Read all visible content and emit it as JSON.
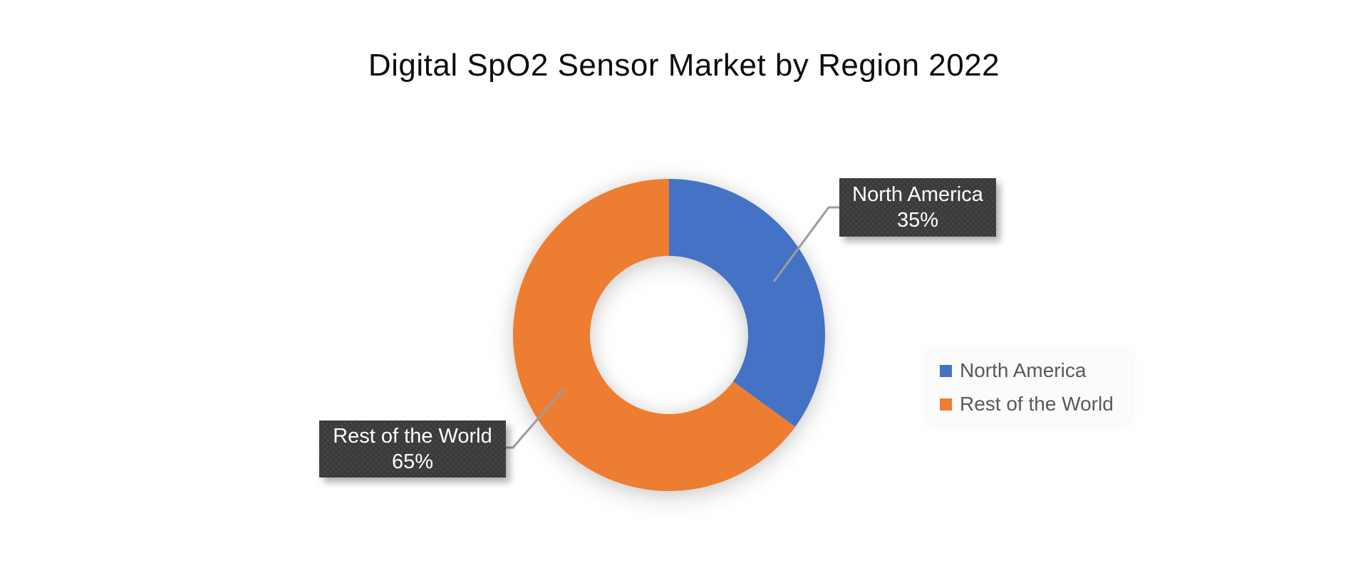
{
  "title": "Digital SpO2 Sensor Market by Region 2022",
  "chart_data": {
    "type": "pie",
    "subtype": "donut",
    "title": "Digital SpO2 Sensor Market by Region 2022",
    "categories": [
      "North America",
      "Rest of the World"
    ],
    "values": [
      35,
      65
    ],
    "unit": "percent",
    "colors": [
      "#4472C4",
      "#ED7D31"
    ],
    "hole_ratio": 0.51,
    "start_angle_deg": 0,
    "direction": "clockwise",
    "legend_position": "right",
    "data_labels": [
      "North America 35%",
      "Rest of the World 65%"
    ]
  },
  "callouts": [
    {
      "label": "North America",
      "value": "35%"
    },
    {
      "label": "Rest of the World",
      "value": "65%"
    }
  ],
  "legend": {
    "items": [
      {
        "label": "North America",
        "color": "#4472C4"
      },
      {
        "label": "Rest of the World",
        "color": "#ED7D31"
      }
    ]
  },
  "style": {
    "background": "#FFFFFF",
    "callout_bg": "#3B3B3B",
    "callout_text": "#FFFFFF",
    "leader_line": "#9C9C9C",
    "legend_text": "#595959",
    "title_color": "#0D0D0D"
  }
}
